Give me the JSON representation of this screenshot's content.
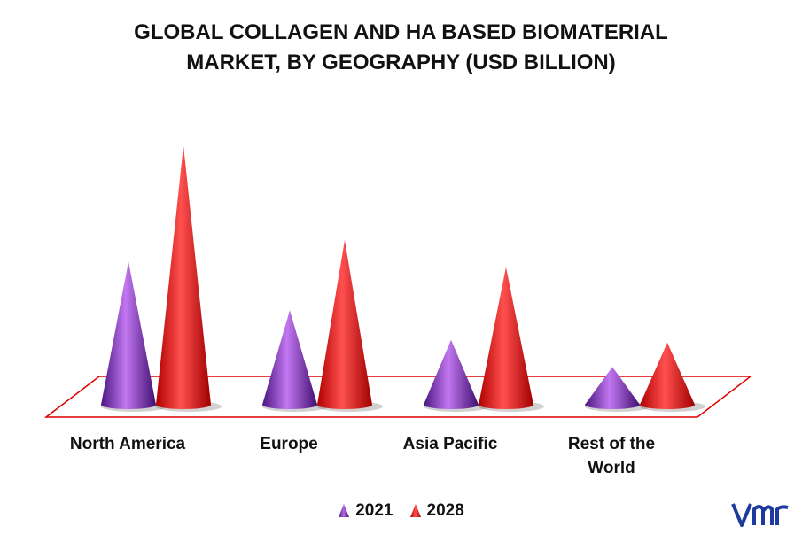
{
  "chart_data": {
    "type": "bar",
    "title_line1": "GLOBAL COLLAGEN AND HA BASED BIOMATERIAL",
    "title_line2": "MARKET, BY GEOGRAPHY (USD BILLION)",
    "categories": [
      "North America",
      "Europe",
      "Asia Pacific",
      "Rest of the\nWorld"
    ],
    "series": [
      {
        "name": "2021",
        "color": "#7b2fb0",
        "values": [
          5.3,
          3.5,
          2.4,
          1.4
        ]
      },
      {
        "name": "2028",
        "color": "#ff1010",
        "values": [
          9.6,
          6.1,
          5.1,
          2.3
        ]
      }
    ],
    "ylim": [
      0,
      10
    ],
    "grid": false,
    "legend": "bottom",
    "shape": "cone",
    "floor_color": "#e00000"
  },
  "brand": {
    "logo_text": "vmr",
    "logo_icon": "vmr-logo-icon"
  }
}
